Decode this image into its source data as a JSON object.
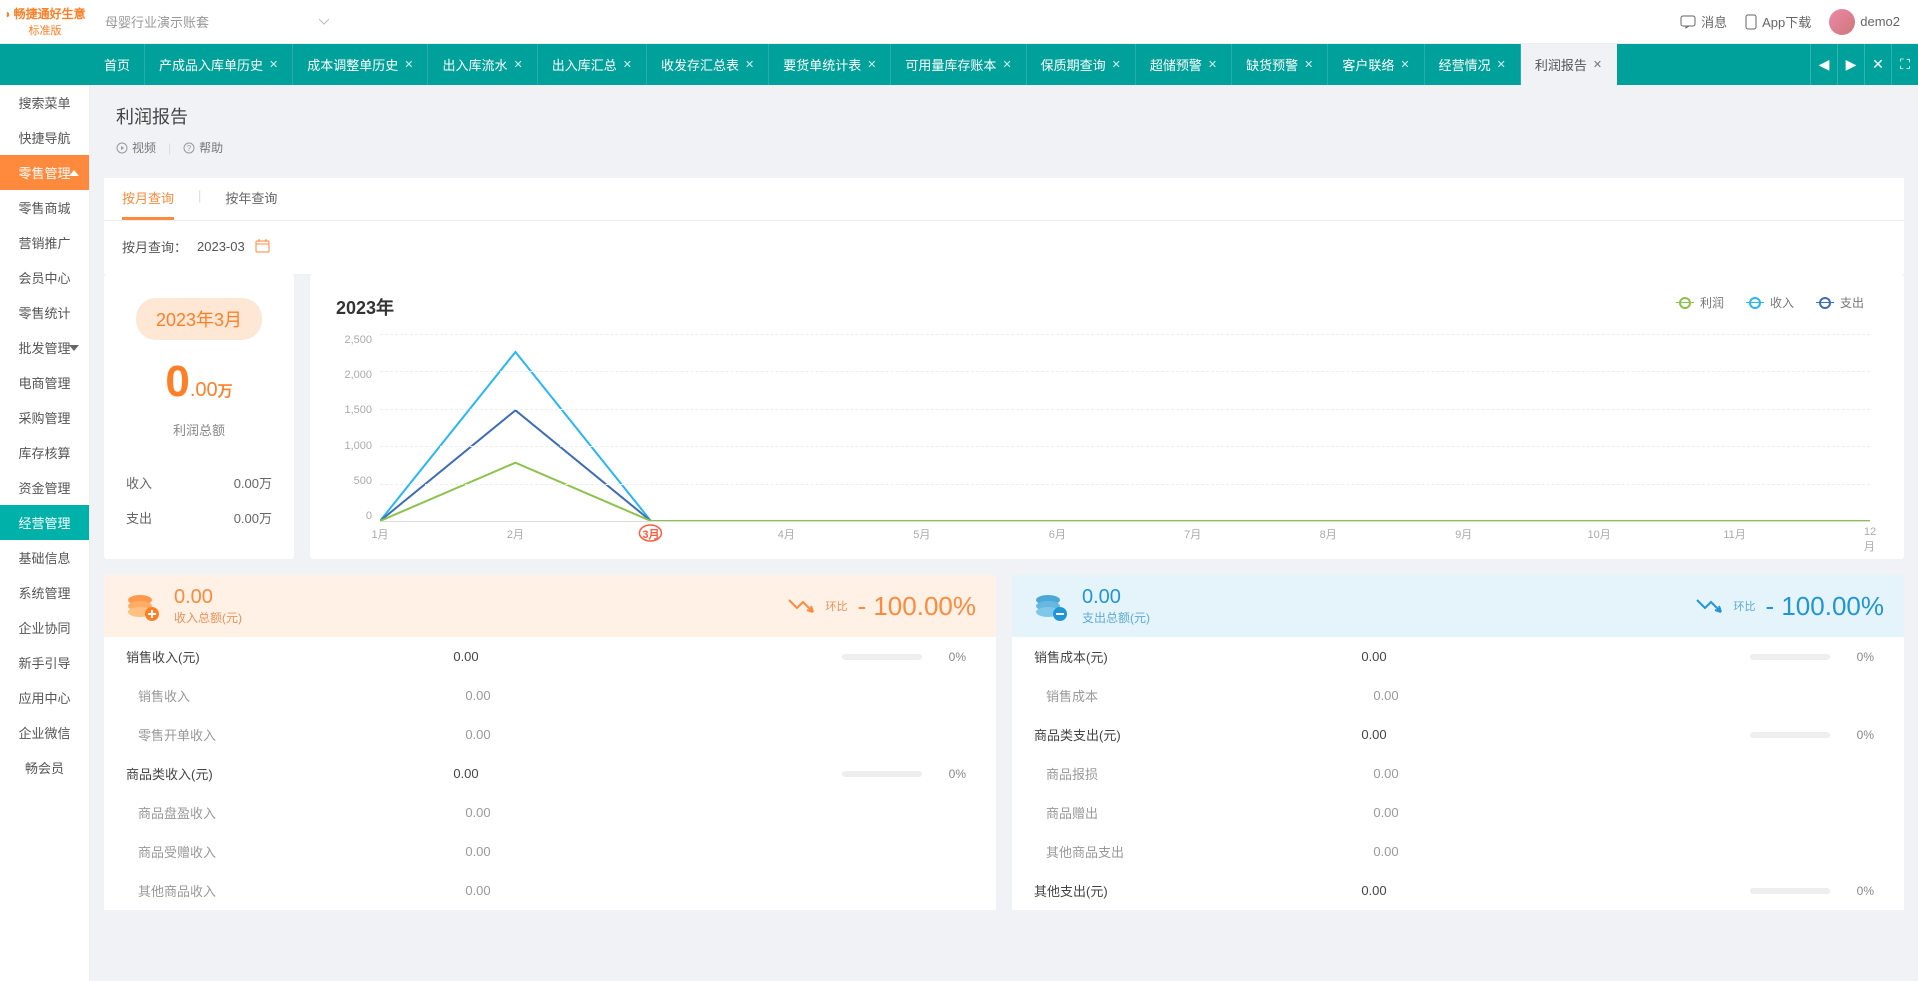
{
  "appName": "畅捷通好生意",
  "appEdition": "标准版",
  "accountSelector": "母婴行业演示账套",
  "topRight": {
    "message": "消息",
    "appDownload": "App下载",
    "user": "demo2"
  },
  "tabs": [
    {
      "label": "首页",
      "close": false,
      "active": false
    },
    {
      "label": "产成品入库单历史",
      "close": true,
      "active": false
    },
    {
      "label": "成本调整单历史",
      "close": true,
      "active": false
    },
    {
      "label": "出入库流水",
      "close": true,
      "active": false
    },
    {
      "label": "出入库汇总",
      "close": true,
      "active": false
    },
    {
      "label": "收发存汇总表",
      "close": true,
      "active": false
    },
    {
      "label": "要货单统计表",
      "close": true,
      "active": false
    },
    {
      "label": "可用量库存账本",
      "close": true,
      "active": false
    },
    {
      "label": "保质期查询",
      "close": true,
      "active": false
    },
    {
      "label": "超储预警",
      "close": true,
      "active": false
    },
    {
      "label": "缺货预警",
      "close": true,
      "active": false
    },
    {
      "label": "客户联络",
      "close": true,
      "active": false
    },
    {
      "label": "经营情况",
      "close": true,
      "active": false
    },
    {
      "label": "利润报告",
      "close": true,
      "active": true
    }
  ],
  "leftNav": [
    {
      "label": "搜索菜单",
      "cls": ""
    },
    {
      "label": "快捷导航",
      "cls": ""
    },
    {
      "label": "零售管理",
      "cls": "orange"
    },
    {
      "label": "零售商城",
      "cls": ""
    },
    {
      "label": "营销推广",
      "cls": ""
    },
    {
      "label": "会员中心",
      "cls": ""
    },
    {
      "label": "零售统计",
      "cls": ""
    },
    {
      "label": "批发管理",
      "cls": "caret"
    },
    {
      "label": "电商管理",
      "cls": ""
    },
    {
      "label": "采购管理",
      "cls": ""
    },
    {
      "label": "库存核算",
      "cls": ""
    },
    {
      "label": "资金管理",
      "cls": ""
    },
    {
      "label": "经营管理",
      "cls": "teal"
    },
    {
      "label": "基础信息",
      "cls": ""
    },
    {
      "label": "系统管理",
      "cls": ""
    },
    {
      "label": "企业协同",
      "cls": ""
    },
    {
      "label": "新手引导",
      "cls": ""
    },
    {
      "label": "应用中心",
      "cls": ""
    },
    {
      "label": "企业微信",
      "cls": ""
    },
    {
      "label": "畅会员",
      "cls": ""
    }
  ],
  "pageTitle": "利润报告",
  "helpLinks": {
    "video": "视频",
    "help": "帮助"
  },
  "queryTabs": {
    "byMonth": "按月查询",
    "byYear": "按年查询"
  },
  "queryLabel": "按月查询：",
  "queryValue": "2023-03",
  "summary": {
    "period": "2023年3月",
    "bigInt": "0",
    "bigDec": ".00",
    "unit": "万",
    "label": "利润总额",
    "rows": [
      {
        "k": "收入",
        "v": "0.00万"
      },
      {
        "k": "支出",
        "v": "0.00万"
      }
    ]
  },
  "chart": {
    "title": "2023年",
    "legend": [
      {
        "name": "利润",
        "color": "#8bc34a"
      },
      {
        "name": "收入",
        "color": "#29b6f6"
      },
      {
        "name": "支出",
        "color": "#3f6db5"
      }
    ],
    "yMax": 2500,
    "yStep": 500,
    "yTicks": [
      "2,500",
      "2,000",
      "1,500",
      "1,000",
      "500",
      "0"
    ],
    "xTicks": [
      "1月",
      "2月",
      "3月",
      "4月",
      "5月",
      "6月",
      "7月",
      "8月",
      "9月",
      "10月",
      "11月",
      "12月"
    ],
    "xHighlight": 2,
    "series": {
      "profit": [
        0,
        780,
        0,
        0,
        0,
        0,
        0,
        0,
        0,
        0,
        0,
        0
      ],
      "income": [
        0,
        2260,
        0,
        0,
        0,
        0,
        0,
        0,
        0,
        0,
        0,
        0
      ],
      "expense": [
        0,
        1480,
        0,
        0,
        0,
        0,
        0,
        0,
        0,
        0,
        0,
        0
      ]
    },
    "colors": {
      "profit": "#8bc34a",
      "income": "#29b6f6",
      "expense": "#3f6db5"
    }
  },
  "incomePanel": {
    "headVal": "0.00",
    "headLbl": "收入总额(元)",
    "trendLbl": "环比",
    "trendPct": "- 100.00%",
    "rows": [
      {
        "name": "销售收入(元)",
        "val": "0.00",
        "bar": true,
        "pct": "0%",
        "sub": false
      },
      {
        "name": "销售收入",
        "val": "0.00",
        "bar": false,
        "sub": true
      },
      {
        "name": "零售开单收入",
        "val": "0.00",
        "bar": false,
        "sub": true
      },
      {
        "name": "商品类收入(元)",
        "val": "0.00",
        "bar": true,
        "pct": "0%",
        "sub": false
      },
      {
        "name": "商品盘盈收入",
        "val": "0.00",
        "bar": false,
        "sub": true
      },
      {
        "name": "商品受赠收入",
        "val": "0.00",
        "bar": false,
        "sub": true
      },
      {
        "name": "其他商品收入",
        "val": "0.00",
        "bar": false,
        "sub": true
      }
    ]
  },
  "expensePanel": {
    "headVal": "0.00",
    "headLbl": "支出总额(元)",
    "trendLbl": "环比",
    "trendPct": "- 100.00%",
    "rows": [
      {
        "name": "销售成本(元)",
        "val": "0.00",
        "bar": true,
        "pct": "0%",
        "sub": false
      },
      {
        "name": "销售成本",
        "val": "0.00",
        "bar": false,
        "sub": true
      },
      {
        "name": "商品类支出(元)",
        "val": "0.00",
        "bar": true,
        "pct": "0%",
        "sub": false
      },
      {
        "name": "商品报损",
        "val": "0.00",
        "bar": false,
        "sub": true
      },
      {
        "name": "商品赠出",
        "val": "0.00",
        "bar": false,
        "sub": true
      },
      {
        "name": "其他商品支出",
        "val": "0.00",
        "bar": false,
        "sub": true
      },
      {
        "name": "其他支出(元)",
        "val": "0.00",
        "bar": true,
        "pct": "0%",
        "sub": false
      }
    ]
  }
}
